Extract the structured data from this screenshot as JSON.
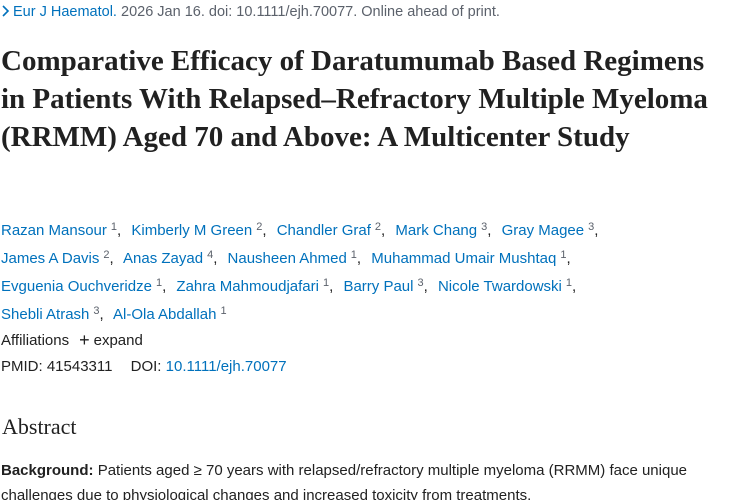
{
  "citation": {
    "journal": "Eur J Haematol.",
    "details": "2026 Jan 16. doi: 10.1111/ejh.70077. Online ahead of print."
  },
  "title": "Comparative Efficacy of Daratumumab Based Regimens in Patients With Relapsed–Refractory Multiple Myeloma (RRMM) Aged 70 and Above: A Multicenter Study",
  "authors": [
    {
      "name": "Razan Mansour",
      "aff": "1"
    },
    {
      "name": "Kimberly M Green",
      "aff": "2"
    },
    {
      "name": "Chandler Graf",
      "aff": "2"
    },
    {
      "name": "Mark Chang",
      "aff": "3"
    },
    {
      "name": "Gray Magee",
      "aff": "3"
    },
    {
      "name": "James A Davis",
      "aff": "2"
    },
    {
      "name": "Anas Zayad",
      "aff": "4"
    },
    {
      "name": "Nausheen Ahmed",
      "aff": "1"
    },
    {
      "name": "Muhammad Umair Mushtaq",
      "aff": "1"
    },
    {
      "name": "Evguenia Ouchveridze",
      "aff": "1"
    },
    {
      "name": "Zahra Mahmoudjafari",
      "aff": "1"
    },
    {
      "name": "Barry Paul",
      "aff": "3"
    },
    {
      "name": "Nicole Twardowski",
      "aff": "1"
    },
    {
      "name": "Shebli Atrash",
      "aff": "3"
    },
    {
      "name": "Al-Ola Abdallah",
      "aff": "1"
    }
  ],
  "affiliations": {
    "label": "Affiliations",
    "toggle": "expand"
  },
  "ids": {
    "pmid_label": "PMID:",
    "pmid": "41543311",
    "doi_label": "DOI:",
    "doi": "10.1111/ejh.70077"
  },
  "abstract": {
    "heading": "Abstract",
    "background_label": "Background:",
    "background": "Patients aged ≥ 70 years with relapsed/refractory multiple myeloma (RRMM) face unique challenges due to physiological changes and increased toxicity from treatments."
  }
}
